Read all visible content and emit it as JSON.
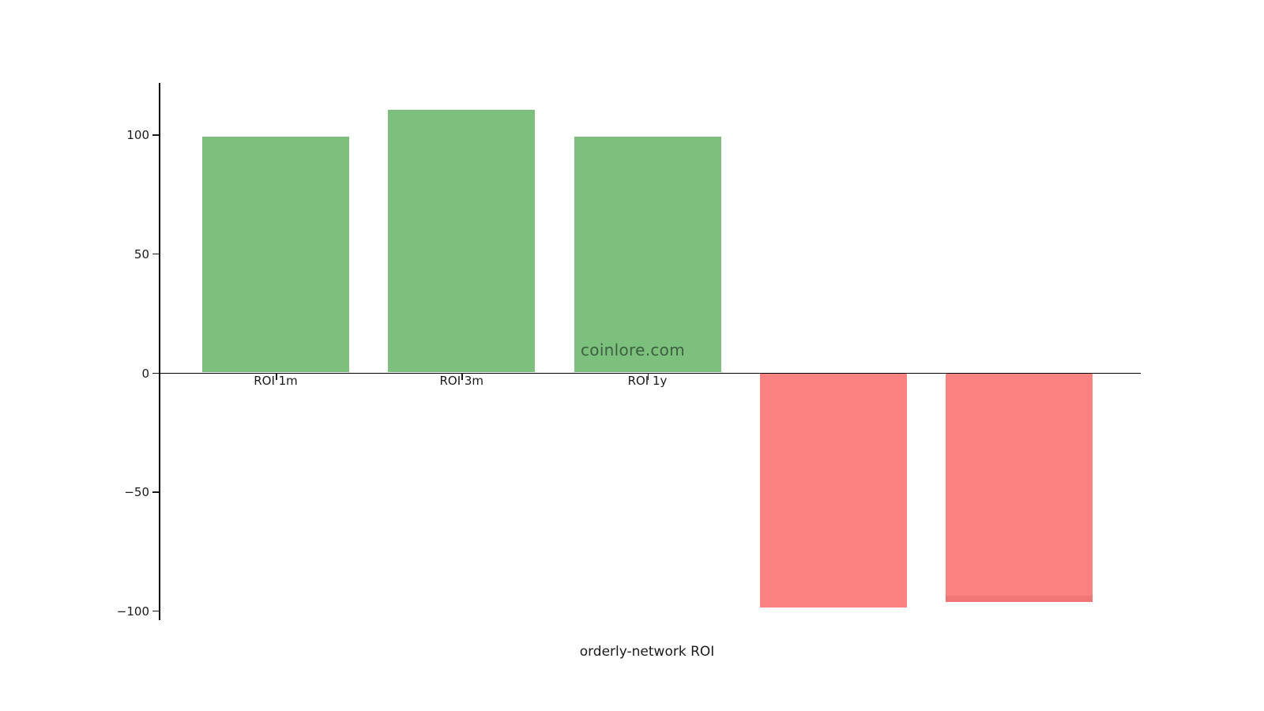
{
  "chart_data": {
    "type": "bar",
    "title": "orderly-network ROI",
    "watermark": "coinlore.com",
    "categories": [
      "ROI 1m",
      "ROI 3m",
      "ROI 1y",
      "",
      ""
    ],
    "bars": [
      {
        "label": "ROI 1m",
        "value": 99
      },
      {
        "label": "ROI 3m",
        "value": 110.5
      },
      {
        "label": "ROI 1y",
        "value": 99
      },
      {
        "label": "",
        "value": -98.5
      },
      {
        "label": "",
        "value": -96,
        "bottom_stripe": true
      }
    ],
    "yticks": [
      100,
      50,
      0,
      -50,
      -100
    ],
    "ylim": [
      -104,
      122
    ],
    "xlabel": "",
    "ylabel": "",
    "grid": false,
    "legend": null,
    "colors": {
      "positive_bar": "#7dbf7d",
      "negative_bar": "#fc8181",
      "negative_bar_stripe": "#ef7676",
      "axis": "#000000",
      "tick_text": "#1a1a1a",
      "watermark_text": "#3a613e",
      "background": "#ffffff"
    }
  }
}
